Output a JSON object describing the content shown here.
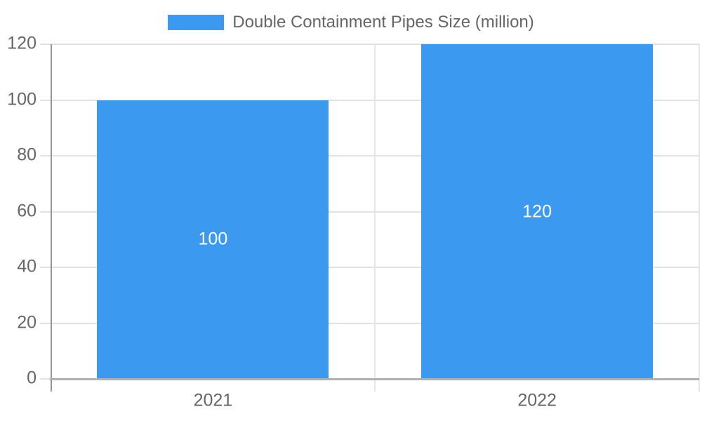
{
  "legend": {
    "label": "Double Containment Pipes Size (million)"
  },
  "chart_data": {
    "type": "bar",
    "title": "",
    "xlabel": "",
    "ylabel": "",
    "categories": [
      "2021",
      "2022"
    ],
    "values": [
      100,
      120
    ],
    "bar_labels": [
      "100",
      "120"
    ],
    "yticks": [
      0,
      20,
      40,
      60,
      80,
      100,
      120
    ],
    "ylim": [
      0,
      120
    ],
    "grid": true,
    "legend_position": "top-center",
    "legend_entries": [
      "Double Containment Pipes Size (million)"
    ],
    "colors": {
      "bar": "#3B9AF0",
      "grid_line": "#e2e2e2",
      "band_separator": "#e6e6e6",
      "axis_line": "#949494",
      "baseline": "#b0b0b0",
      "tick_label": "#666666",
      "value_label": "#ffffff",
      "legend_text": "#666666"
    }
  }
}
